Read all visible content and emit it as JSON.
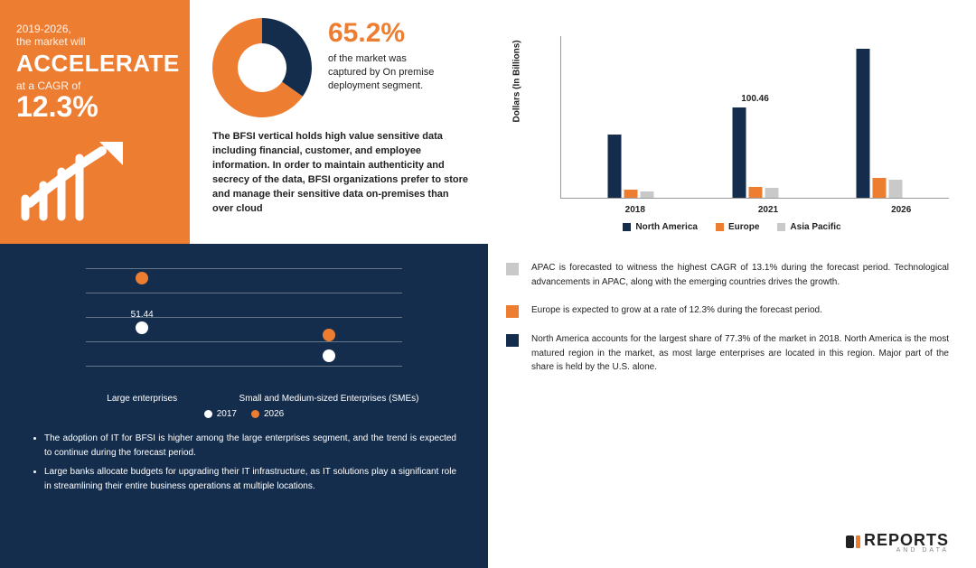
{
  "colors": {
    "orange": "#ed7d31",
    "navy": "#142d4c",
    "grey": "#c9c9c9",
    "text": "#222222",
    "white": "#ffffff"
  },
  "accel": {
    "period": "2019-2026,",
    "pre": "the market will",
    "word": "ACCELERATE",
    "mid": "at a CAGR of",
    "pct": "12.3%"
  },
  "donut": {
    "pct": "65.2%",
    "desc": " of the market was captured by On premise deployment segment.",
    "slice_navy": 0.348,
    "slice_orange": 0.652,
    "size": 110,
    "thickness": 28,
    "colors": {
      "a": "#142d4c",
      "b": "#ed7d31"
    }
  },
  "bfsi": "The BFSI vertical holds high value sensitive data including financial, customer, and employee information. In order to maintain authenticity and secrecy of the data, BFSI organizations prefer to store and manage their sensitive data on-premises than over cloud",
  "dotchart": {
    "cats": [
      "Large enterprises",
      "Small and Medium-sized Enterprises (SMEs)"
    ],
    "series": [
      {
        "name": "2017",
        "color": "#ffffff",
        "values": [
          51.44,
          28
        ]
      },
      {
        "name": "2026",
        "color": "#ed7d31",
        "values": [
          92,
          45
        ]
      }
    ],
    "y_max": 100,
    "label_point": {
      "cat": 0,
      "series": 0,
      "text": "51.44"
    },
    "rows": 5,
    "bullets": [
      "The adoption of IT for BFSI is higher among the large enterprises segment, and the trend is expected to continue during the forecast period.",
      "Large banks allocate budgets for upgrading their IT infrastructure, as IT solutions play a significant role in streamlining their entire business operations at multiple locations."
    ]
  },
  "barchart": {
    "ylabel": "Dollars (In Billions)",
    "years": [
      "2018",
      "2021",
      "2026"
    ],
    "series": [
      {
        "name": "North America",
        "color": "#142d4c",
        "values": [
          70,
          100.46,
          165
        ]
      },
      {
        "name": "Europe",
        "color": "#ed7d31",
        "values": [
          9,
          12,
          22
        ]
      },
      {
        "name": "Asia Pacific",
        "color": "#c9c9c9",
        "values": [
          7,
          11,
          20
        ]
      }
    ],
    "y_max": 180,
    "label_point": {
      "year": 1,
      "series": 0,
      "text": "100.46"
    }
  },
  "notes": [
    {
      "color": "#c9c9c9",
      "text": "APAC is forecasted to witness the highest CAGR of 13.1% during the forecast period. Technological advancements in APAC, along with the emerging countries drives the growth."
    },
    {
      "color": "#ed7d31",
      "text": "Europe is expected to grow at a rate of 12.3% during the forecast period."
    },
    {
      "color": "#142d4c",
      "text": "North America accounts for the largest share of 77.3% of the market in 2018. North America is the most matured region in the market, as most large enterprises are located in this region. Major part of the share is held by the U.S. alone."
    }
  ],
  "logo": {
    "main": "REPORTS",
    "sub": "AND DATA"
  }
}
